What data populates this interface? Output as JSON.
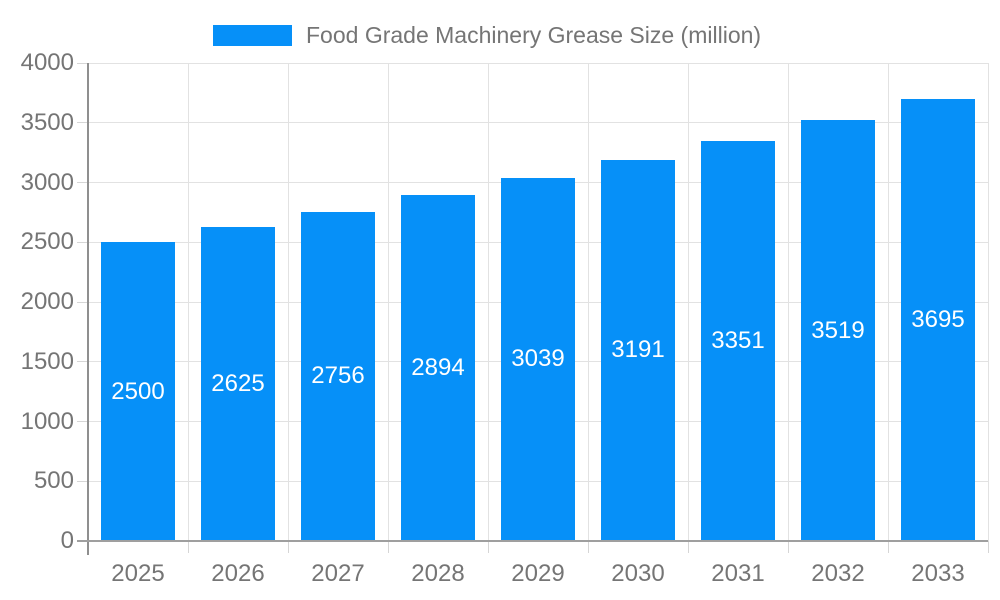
{
  "chart_data": {
    "type": "bar",
    "series_name": "Food Grade Machinery Grease Size (million)",
    "categories": [
      "2025",
      "2026",
      "2027",
      "2028",
      "2029",
      "2030",
      "2031",
      "2032",
      "2033"
    ],
    "values": [
      2500,
      2625,
      2756,
      2894,
      3039,
      3191,
      3351,
      3519,
      3695
    ],
    "ylim": [
      0,
      4000
    ],
    "yticks": [
      0,
      500,
      1000,
      1500,
      2000,
      2500,
      3000,
      3500,
      4000
    ],
    "grid": true,
    "legend_position": "top-center",
    "value_labels": "inside-center",
    "colors": {
      "bar": "#0690f8",
      "bar_label": "#ffffff",
      "axis_text": "#757575",
      "grid_line": "#e2e2e2",
      "tick_line": "#d6d6d6",
      "axis_line": "#8f8f8f",
      "baseline": "#9f9f9f",
      "background": "#ffffff"
    }
  }
}
